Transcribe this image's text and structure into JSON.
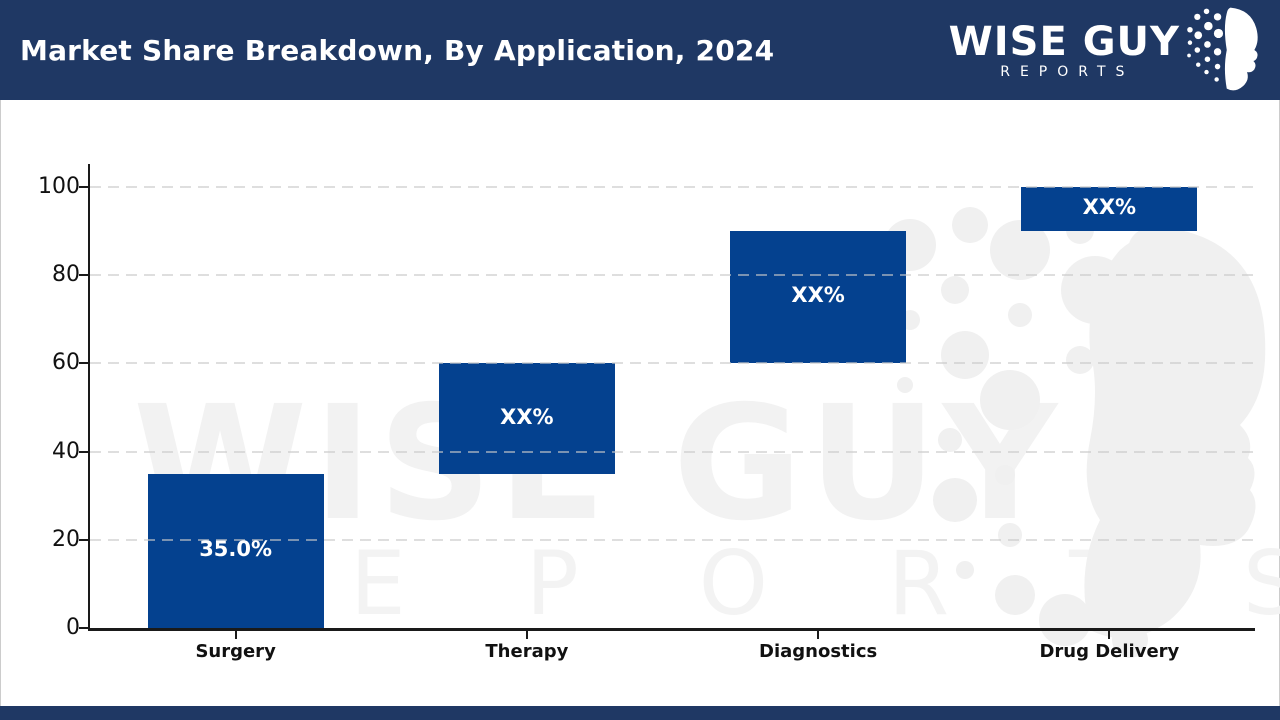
{
  "header": {
    "title": "Market Share Breakdown, By Application, 2024",
    "logo": {
      "line1": "WISE GUY",
      "line2": "REPORTS"
    }
  },
  "watermark": {
    "line1": "WISE GUY",
    "line2": "R E P O R T S"
  },
  "colors": {
    "header_bg": "#1f3864",
    "footer_bg": "#1f3864",
    "bar": "#04418f",
    "bar_label": "#ffffff",
    "grid": "#c9c9c9",
    "axis": "#1a1a1a",
    "watermark": "#f2f2f2"
  },
  "chart_data": {
    "type": "bar",
    "subtype": "waterfall",
    "title": "Market Share Breakdown, By Application, 2024",
    "categories": [
      "Surgery",
      "Therapy",
      "Diagnostics",
      "Drug Delivery"
    ],
    "segments": [
      {
        "category": "Surgery",
        "start": 0,
        "end": 35,
        "label": "35.0%"
      },
      {
        "category": "Therapy",
        "start": 35,
        "end": 60,
        "label": "XX%"
      },
      {
        "category": "Diagnostics",
        "start": 60,
        "end": 90,
        "label": "XX%"
      },
      {
        "category": "Drug Delivery",
        "start": 90,
        "end": 100,
        "label": "XX%"
      }
    ],
    "xlabel": "",
    "ylabel": "",
    "yticks": [
      0,
      20,
      40,
      60,
      80,
      100
    ],
    "ylim": [
      0,
      105
    ],
    "grid": "horizontal-dashed",
    "legend": "none"
  }
}
